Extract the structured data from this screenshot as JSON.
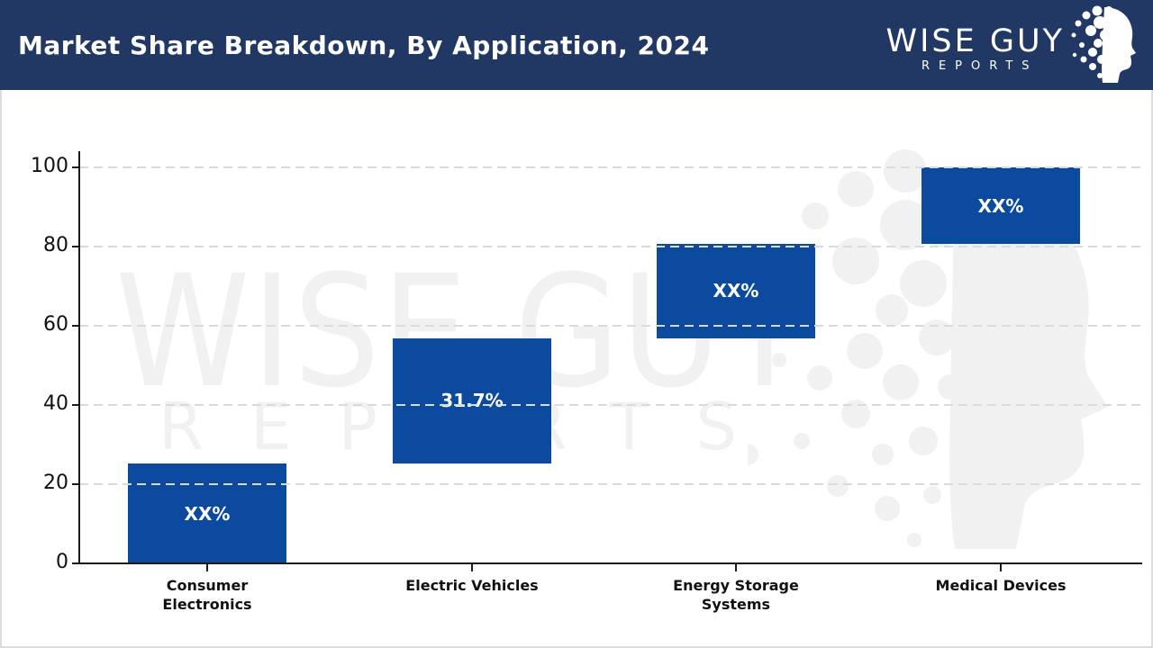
{
  "header": {
    "title": "Market Share Breakdown, By Application, 2024",
    "logo": {
      "line1": "WISE GUY",
      "line2": "REPORTS"
    }
  },
  "watermark": {
    "line1": "WISE GUY",
    "line2": "REPORTS"
  },
  "chart_data": {
    "type": "bar",
    "variant": "floating-waterfall-segments",
    "title": "Market Share Breakdown, By Application, 2024",
    "categories": [
      "Consumer Electronics",
      "Electric Vehicles",
      "Energy Storage Systems",
      "Medical Devices"
    ],
    "category_label_lines": [
      [
        "Consumer",
        "Electronics"
      ],
      [
        "Electric Vehicles"
      ],
      [
        "Energy Storage",
        "Systems"
      ],
      [
        "Medical Devices"
      ]
    ],
    "bars": [
      {
        "category": "Consumer Electronics",
        "start": 0,
        "end": 25.2,
        "label": "XX%"
      },
      {
        "category": "Electric Vehicles",
        "start": 25.2,
        "end": 56.9,
        "label": "31.7%"
      },
      {
        "category": "Energy Storage Systems",
        "start": 56.9,
        "end": 80.6,
        "label": "XX%"
      },
      {
        "category": "Medical Devices",
        "start": 80.6,
        "end": 100,
        "label": "XX%"
      }
    ],
    "ylim": [
      0,
      100
    ],
    "yticks": [
      0,
      20,
      40,
      60,
      80,
      100
    ],
    "xlabel": "",
    "ylabel": "",
    "grid": {
      "axis": "y",
      "style": "dashed",
      "color": "#dadada"
    },
    "legend_position": "none",
    "bar_color": "#0b4a9f",
    "bar_label_color": "#ffffff",
    "axis_color": "#1a1a1a",
    "header_bg": "#213764"
  }
}
